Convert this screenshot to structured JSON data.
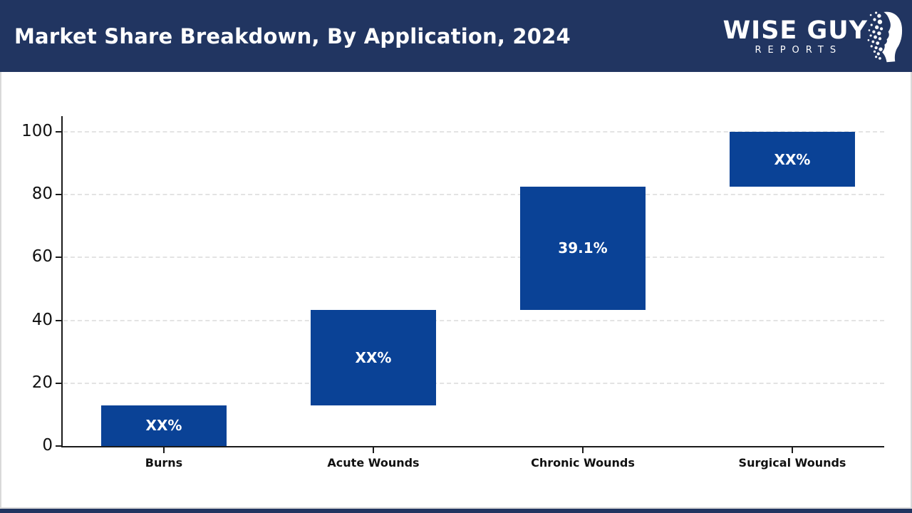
{
  "header": {
    "title": "Market Share Breakdown, By Application, 2024",
    "logo": {
      "line1": "WISE GUY",
      "line2": "REPORTS"
    }
  },
  "watermark": {
    "line1": "WISE GUY",
    "line2": "REPORTS",
    "letterspaced_line2": "R E P O R T S"
  },
  "colors": {
    "header_navy": "#213561",
    "bar_blue": "#0a4296",
    "bar_label_white": "#ffffff",
    "gridline_gray": "#e3e3e3",
    "axis_black": "#1a1a1a",
    "watermark_gray": "#f2f2f2",
    "frame_gray": "#d9d9d9"
  },
  "chart_data": {
    "type": "bar",
    "variant": "waterfall",
    "title": "Market Share Breakdown, By Application, 2024",
    "categories": [
      "Burns",
      "Acute Wounds",
      "Chronic Wounds",
      "Surgical Wounds"
    ],
    "segments": [
      {
        "category": "Burns",
        "start": 0,
        "end": 13.0,
        "value": 13.0,
        "label": "XX%"
      },
      {
        "category": "Acute Wounds",
        "start": 13.0,
        "end": 43.4,
        "value": 30.4,
        "label": "XX%"
      },
      {
        "category": "Chronic Wounds",
        "start": 43.4,
        "end": 82.5,
        "value": 39.1,
        "label": "39.1%"
      },
      {
        "category": "Surgical Wounds",
        "start": 82.5,
        "end": 100,
        "value": 17.5,
        "label": "XX%"
      }
    ],
    "yticks": [
      0,
      20,
      40,
      60,
      80,
      100
    ],
    "ylim": [
      0,
      105
    ],
    "xlabel": "",
    "ylabel": "",
    "grid": "horizontal-dashed",
    "legend": "none",
    "bar_color": "#0a4296",
    "label_color": "#ffffff"
  }
}
